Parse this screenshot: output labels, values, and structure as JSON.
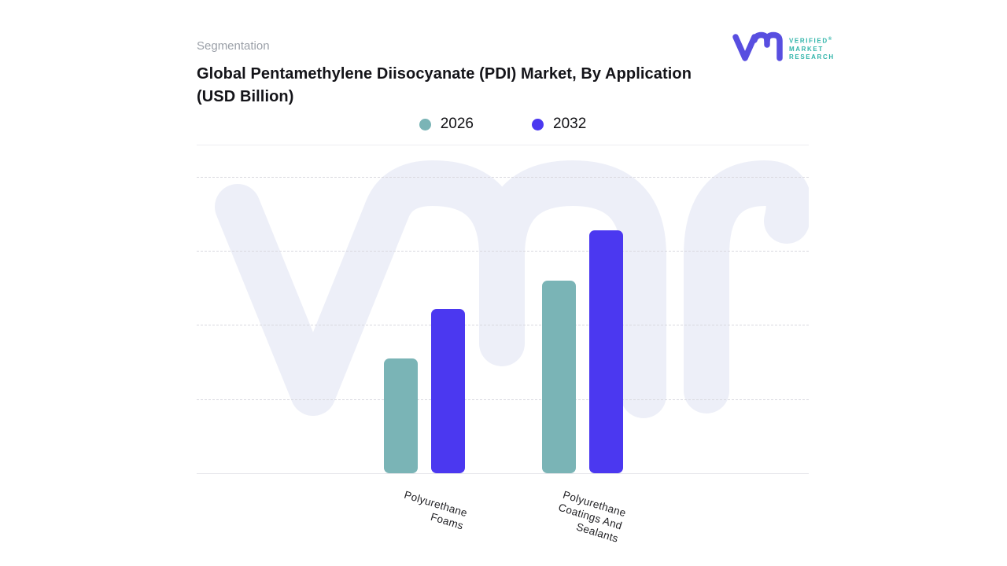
{
  "header": {
    "eyebrow": "Segmentation",
    "title_lines": [
      "Global Pentamethylene Diisocyanate (PDI) Market, By Application",
      "(USD Billion)"
    ]
  },
  "brand": {
    "name_line1": "VERIFIED",
    "name_line2": "MARKET",
    "name_line3": "RESEARCH",
    "registered_mark": "®",
    "mark_color": "#584ee0",
    "text_color": "#2fb4a9"
  },
  "legend": {
    "items": [
      {
        "label": "2026",
        "color": "#7ab4b6"
      },
      {
        "label": "2032",
        "color": "#4b38f0"
      }
    ]
  },
  "chart_data": {
    "type": "bar",
    "title": "Global Pentamethylene Diisocyanate (PDI) Market, By Application (USD Billion)",
    "unit": "USD Billion",
    "categories": [
      [
        "Polyurethane",
        "Foams"
      ],
      [
        "Polyurethane",
        "Coatings And",
        "Sealants"
      ]
    ],
    "series": [
      {
        "name": "2026",
        "color": "#7ab4b6",
        "values": [
          1.55,
          2.6
        ]
      },
      {
        "name": "2032",
        "color": "#4b38f0",
        "values": [
          2.22,
          3.28
        ]
      }
    ],
    "ylim": [
      0,
      4.43
    ],
    "gridline_step": 1,
    "y_tick_labels_visible": false,
    "grid_style": "horizontal-dashed",
    "legend_position": "top-center",
    "watermark": "vmr-logo"
  }
}
